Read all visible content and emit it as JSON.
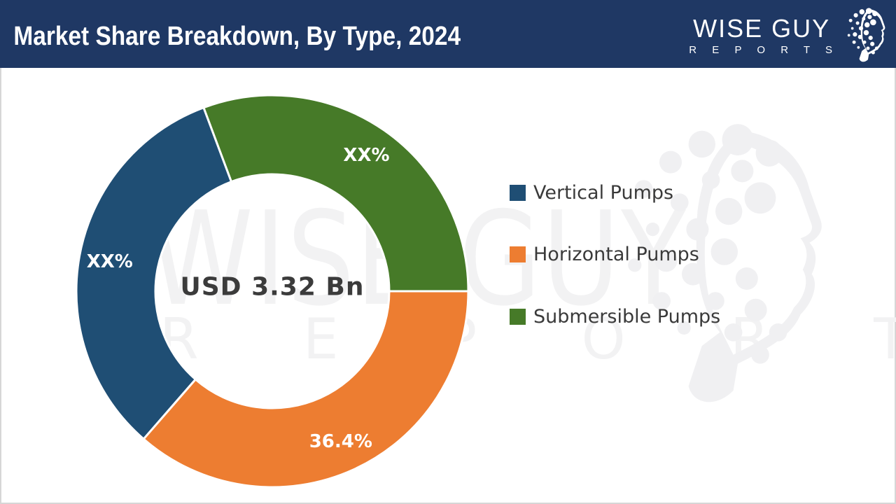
{
  "header": {
    "title": "Market Share Breakdown, By Type, 2024",
    "logo": {
      "line1": "WISE GUY",
      "line2": "R E P O R T S"
    }
  },
  "colors": {
    "header_bg": "#1F3864",
    "text_dark": "#3a3a3a",
    "slice_label_text": "#ffffff",
    "watermark": "#f2f2f3",
    "frame_border": "#d6d6d6"
  },
  "chart_data": {
    "type": "pie",
    "subtype": "donut",
    "center_label": "USD 3.32 Bn",
    "title": "Market Share Breakdown, By Type, 2024",
    "legend_position": "right",
    "slices": [
      {
        "label": "Vertical Pumps",
        "display_value": "XX%",
        "value_pct": 32.9,
        "color": "#1F4E74"
      },
      {
        "label": "Horizontal Pumps",
        "display_value": "36.4%",
        "value_pct": 36.4,
        "color": "#ED7D31"
      },
      {
        "label": "Submersible Pumps",
        "display_value": "XX%",
        "value_pct": 30.7,
        "color": "#467A28"
      }
    ],
    "layout": {
      "start_angle_deg": 0,
      "direction": "ccw",
      "draw_order": [
        2,
        0,
        1
      ]
    }
  },
  "watermark": {
    "line1": "WISE GUY",
    "line2": "R E P O R T S"
  }
}
